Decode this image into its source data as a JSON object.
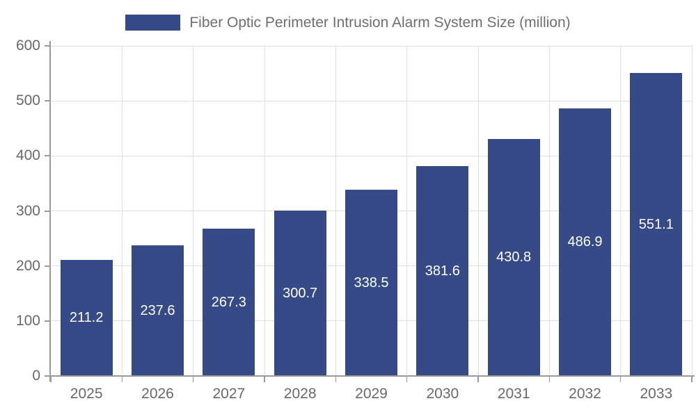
{
  "chart_data": {
    "type": "bar",
    "title": "Fiber Optic Perimeter Intrusion Alarm System Size (million)",
    "categories": [
      "2025",
      "2026",
      "2027",
      "2028",
      "2029",
      "2030",
      "2031",
      "2032",
      "2033"
    ],
    "values": [
      211.2,
      237.6,
      267.3,
      300.7,
      338.5,
      381.6,
      430.8,
      486.9,
      551.1
    ],
    "series_name": "Fiber Optic Perimeter Intrusion Alarm System Size (million)",
    "xlabel": "",
    "ylabel": "",
    "ylim": [
      0,
      600
    ],
    "yticks": [
      0,
      100,
      200,
      300,
      400,
      500,
      600
    ],
    "grid": "horizontal and vertical light gray gridlines",
    "legend_position": "top-center",
    "value_labels": "inside bars, centered, white",
    "colors": {
      "bar": "#374a88",
      "value_label": "#ffffff",
      "axis": "#9a9a9a",
      "gridline": "#e0e0e0",
      "tick_text": "#696969",
      "legend_text": "#6f6f6f",
      "background": "#ffffff"
    }
  }
}
